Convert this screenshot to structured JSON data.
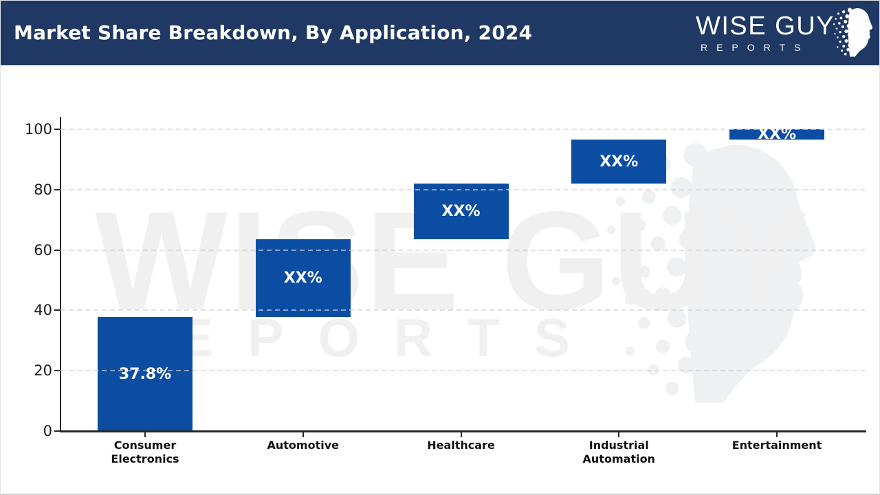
{
  "header": {
    "title": "Market Share Breakdown, By Application, 2024",
    "logo": {
      "line1": "WISE GUY",
      "line2": "REPORTS"
    }
  },
  "watermark": {
    "line1": "WISE GUY",
    "line2": "REPORTS"
  },
  "colors": {
    "header_bg": "#1f3864",
    "bar": "#0b4da2",
    "bar_label": "#ffffff",
    "axis": "#262626",
    "axis_text": "#1a1a1a",
    "gridline": "#d9d9d9"
  },
  "chart_data": {
    "type": "bar",
    "subtype": "waterfall",
    "title": "Market Share Breakdown, By Application, 2024",
    "categories": [
      "Consumer\nElectronics",
      "Automotive",
      "Healthcare",
      "Industrial\nAutomation",
      "Entertainment"
    ],
    "segments": [
      {
        "category": "Consumer Electronics",
        "start": 0,
        "end": 37.8,
        "value": 37.8,
        "label": "37.8%"
      },
      {
        "category": "Automotive",
        "start": 37.8,
        "end": 63.5,
        "value": 25.7,
        "label": "XX%"
      },
      {
        "category": "Healthcare",
        "start": 63.5,
        "end": 82.0,
        "value": 18.5,
        "label": "XX%"
      },
      {
        "category": "Industrial Automation",
        "start": 82.0,
        "end": 96.5,
        "value": 14.5,
        "label": "XX%"
      },
      {
        "category": "Entertainment",
        "start": 96.5,
        "end": 100.0,
        "value": 3.5,
        "label": "XX%"
      }
    ],
    "y_ticks": [
      0,
      20,
      40,
      60,
      80,
      100
    ],
    "ylim": [
      0,
      104
    ],
    "xlabel": "",
    "ylabel": "",
    "grid": "dashed-horizontal",
    "legend": "none"
  }
}
